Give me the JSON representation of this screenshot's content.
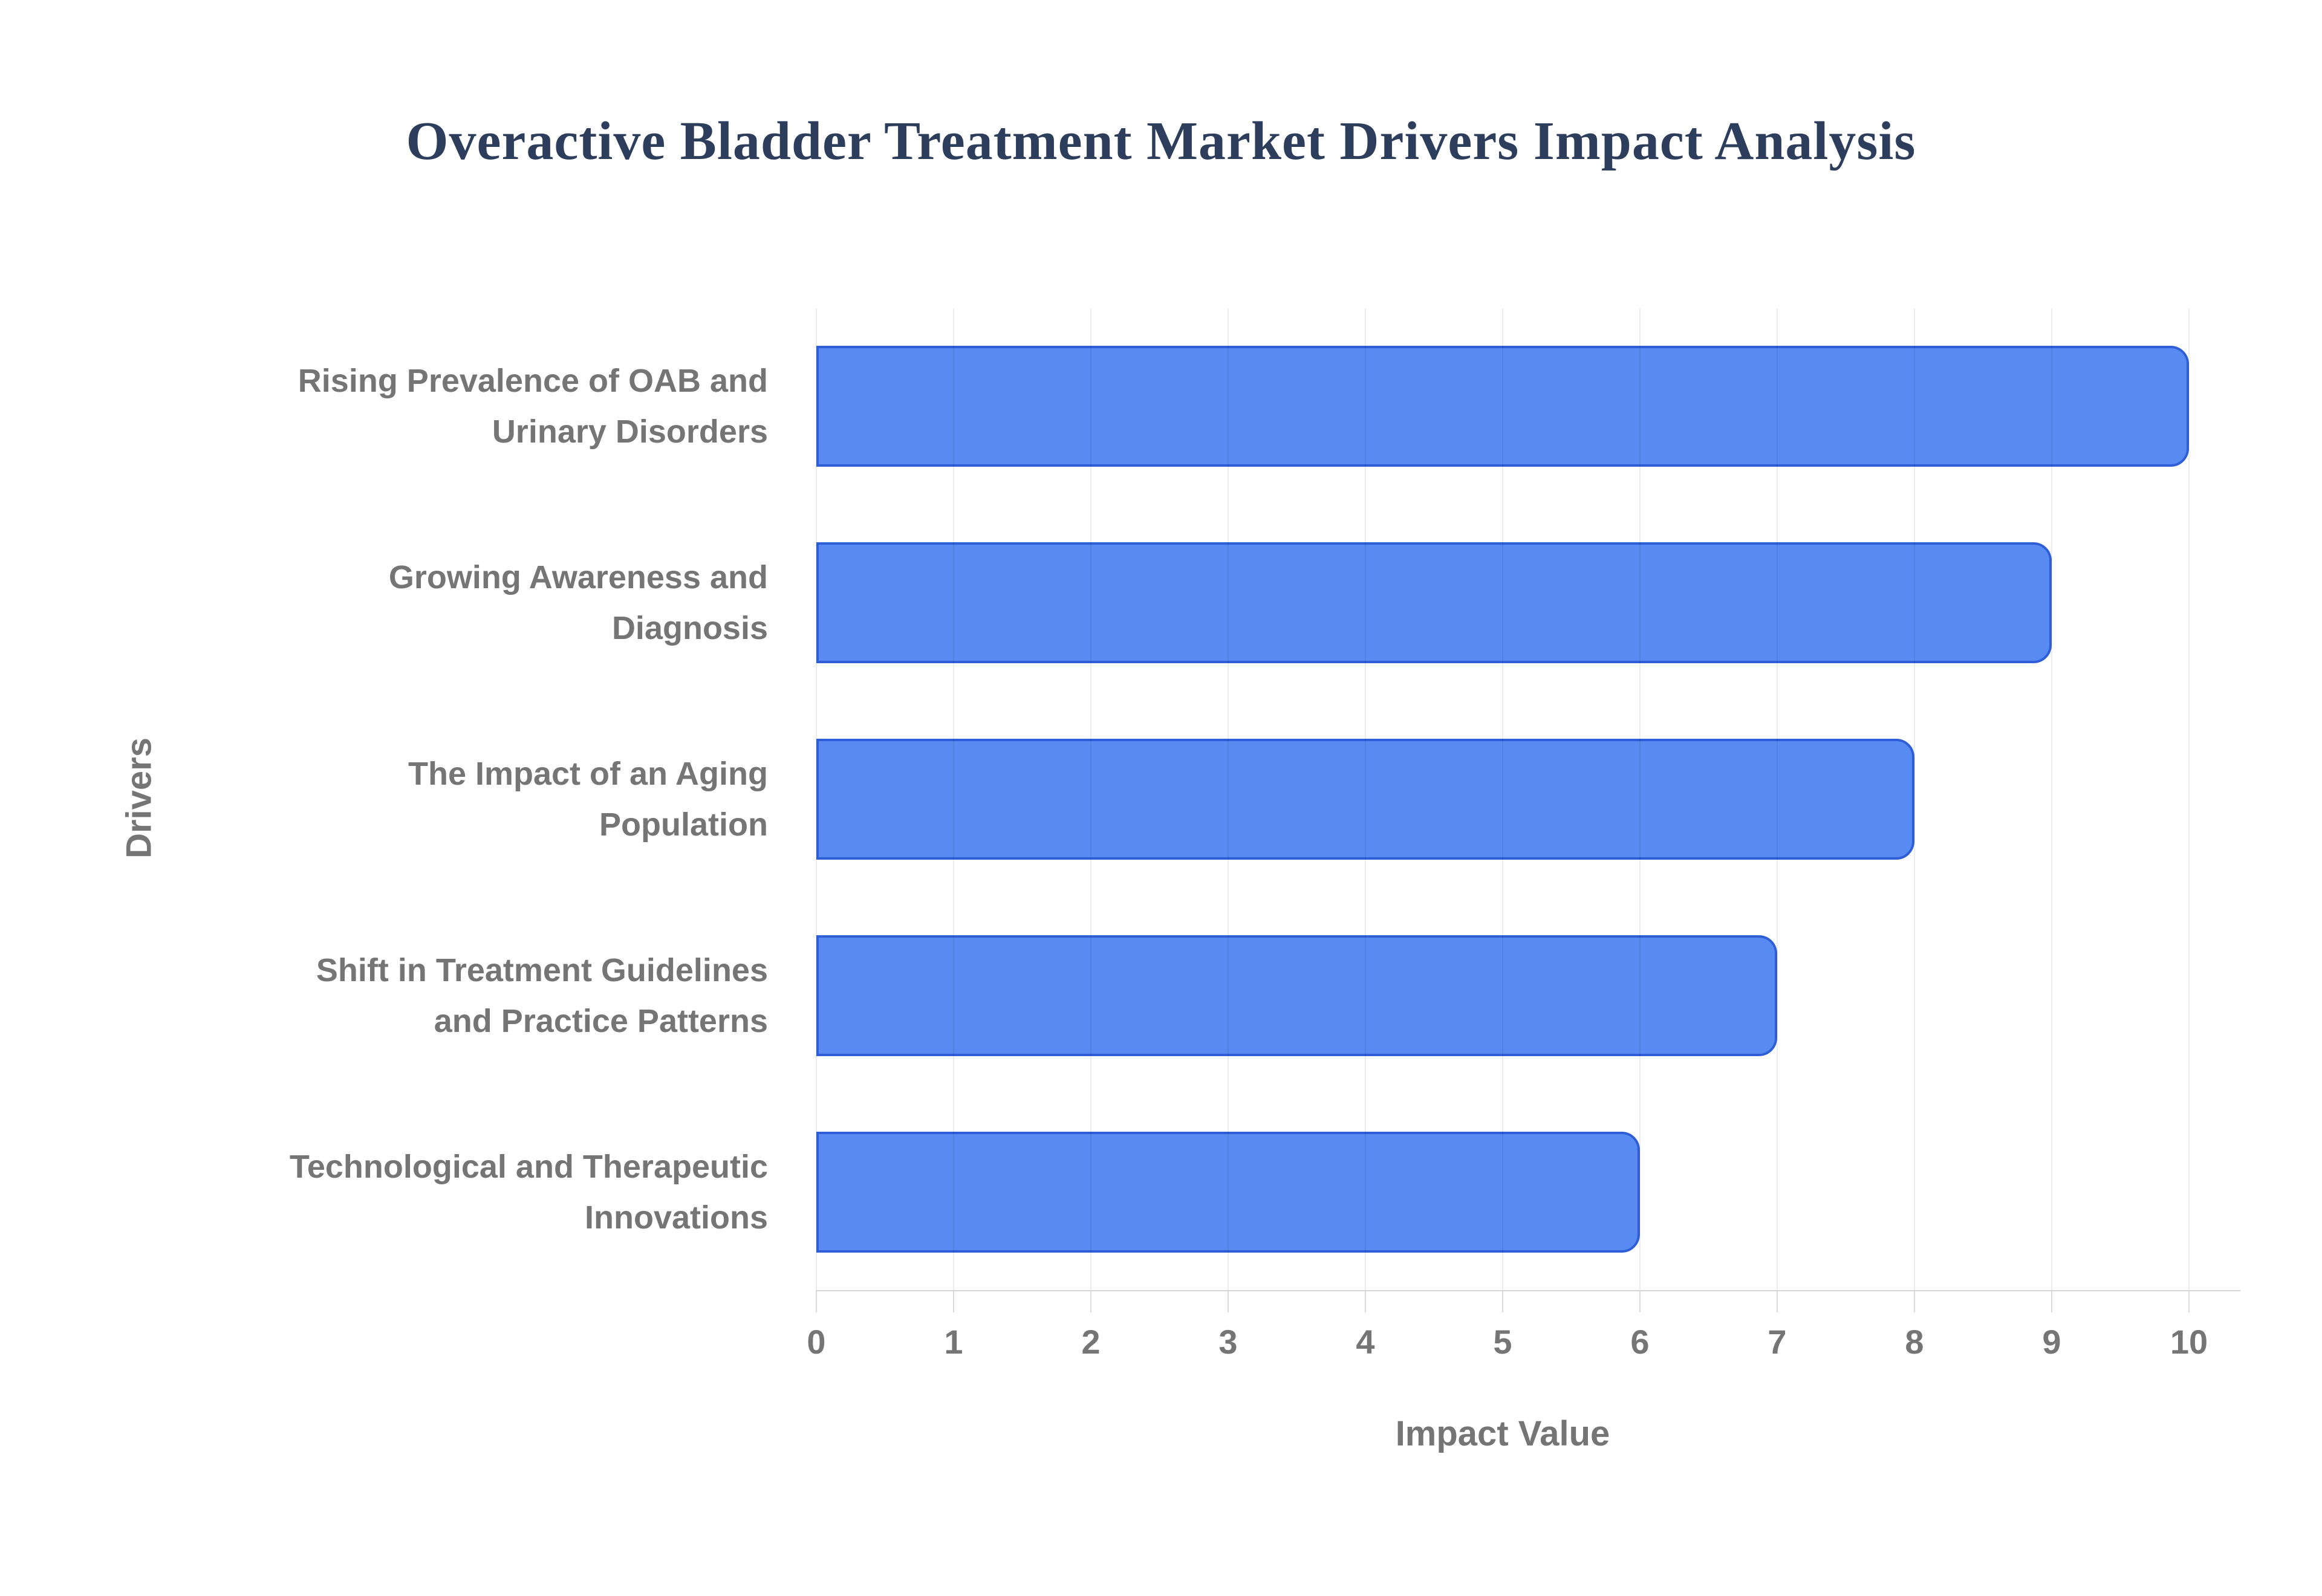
{
  "page": {
    "background": "#ffffff"
  },
  "chart_data": {
    "type": "bar",
    "orientation": "horizontal",
    "title": "Overactive Bladder Treatment Market Drivers Impact Analysis",
    "xlabel": "Impact Value",
    "ylabel": "Drivers",
    "categories": [
      "Rising Prevalence of OAB and Urinary Disorders",
      "Growing Awareness and Diagnosis",
      "The Impact of an Aging Population",
      "Shift in Treatment Guidelines and Practice Patterns",
      "Technological and Therapeutic Innovations"
    ],
    "category_lines": [
      [
        "Rising Prevalence of OAB and",
        "Urinary Disorders"
      ],
      [
        "Growing Awareness and",
        "Diagnosis"
      ],
      [
        "The Impact of an Aging",
        "Population"
      ],
      [
        "Shift in Treatment Guidelines",
        "and Practice Patterns"
      ],
      [
        "Technological and Therapeutic",
        "Innovations"
      ]
    ],
    "values": [
      10,
      9,
      8,
      7,
      6
    ],
    "xlim": [
      0,
      10
    ],
    "xticks": [
      0,
      1,
      2,
      3,
      4,
      5,
      6,
      7,
      8,
      9,
      10
    ],
    "grid": true,
    "legend": "none",
    "colors": {
      "bar_fill": "#578bf2",
      "bar_border": "#2f5fd7",
      "gridline": "#e4e4e4",
      "axis_line": "#d6d6d6",
      "tick_text": "#757575",
      "label_text": "#757575",
      "title_text": "#2d3e5d"
    }
  }
}
